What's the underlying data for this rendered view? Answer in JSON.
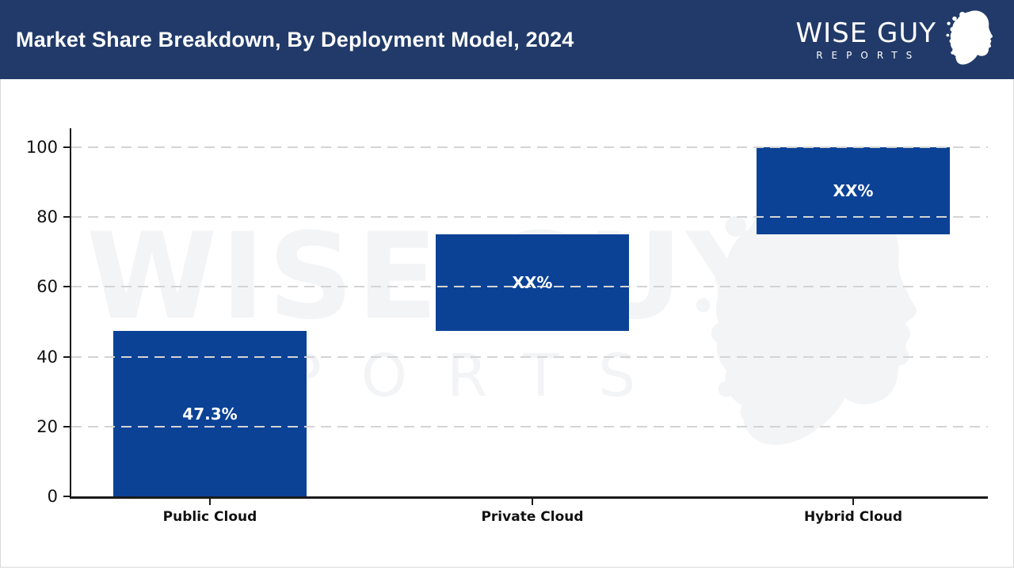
{
  "header": {
    "title": "Market Share Breakdown, By Deployment Model, 2024",
    "logo": {
      "line1": "WISE GUY",
      "line2": "REPORTS"
    }
  },
  "watermark": {
    "line1": "WISE GUY",
    "line2": "REPORTS"
  },
  "chart_data": {
    "type": "bar",
    "subtype": "waterfall",
    "title": "Market Share Breakdown, By Deployment Model, 2024",
    "categories": [
      "Public Cloud",
      "Private Cloud",
      "Hybrid Cloud"
    ],
    "segments": [
      {
        "category": "Public Cloud",
        "start": 0,
        "end": 47.3,
        "label": "47.3%"
      },
      {
        "category": "Private Cloud",
        "start": 47.3,
        "end": 75,
        "label": "XX%"
      },
      {
        "category": "Hybrid Cloud",
        "start": 75,
        "end": 100,
        "label": "XX%"
      }
    ],
    "yticks": [
      0,
      20,
      40,
      60,
      80,
      100
    ],
    "ylim": [
      0,
      105
    ],
    "grid": true,
    "grid_style": "dashed",
    "legend": false,
    "colors": {
      "bar": "#0b4296",
      "bar_label": "#ffffff",
      "gridline": "#d4d4d4",
      "axis": "#1a1a1a",
      "tick_label": "#111111",
      "header_bg": "#213a69",
      "watermark": "#f3f4f6"
    }
  }
}
